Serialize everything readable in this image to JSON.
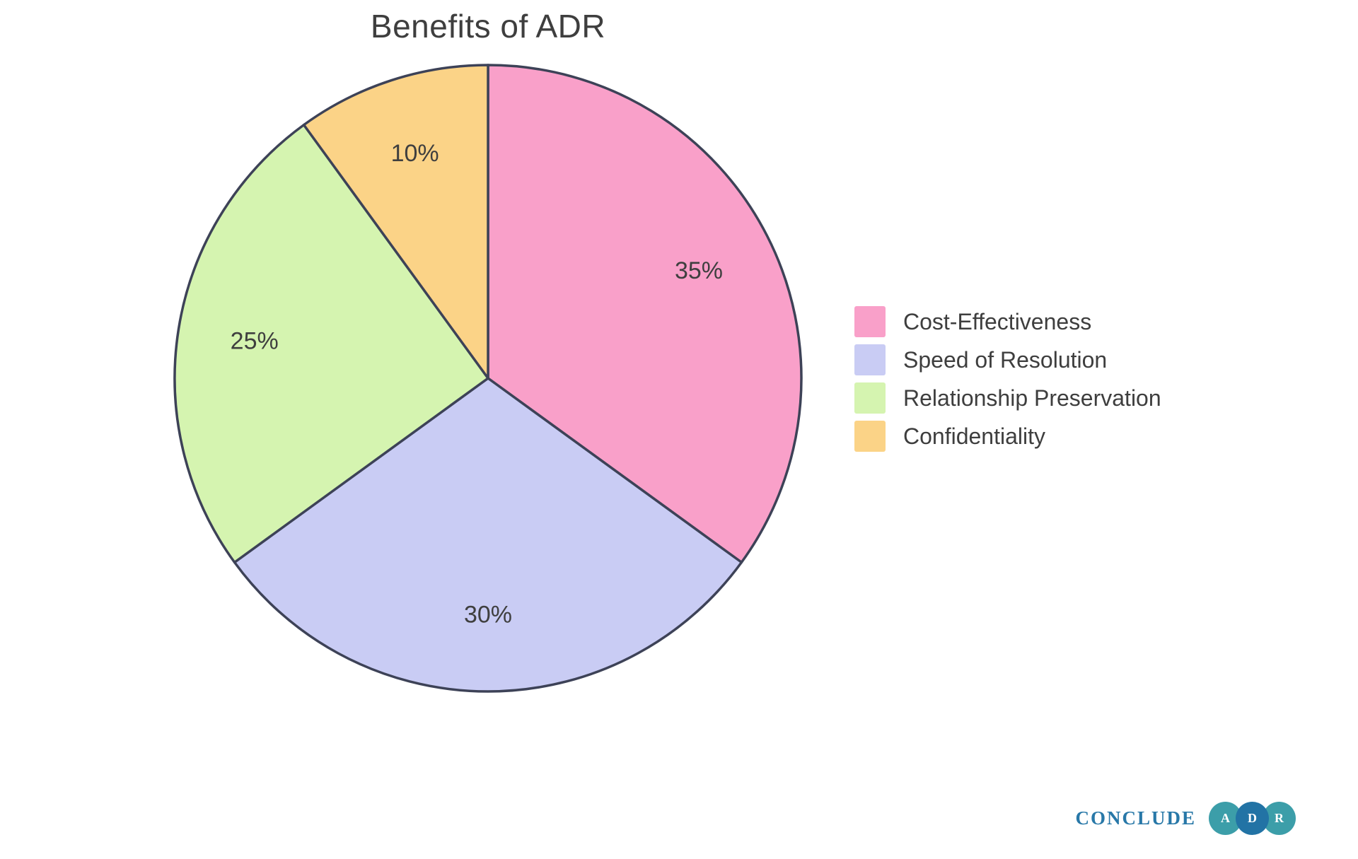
{
  "chart_data": {
    "type": "pie",
    "title": "Benefits of ADR",
    "categories": [
      "Cost-Effectiveness",
      "Speed of Resolution",
      "Relationship Preservation",
      "Confidentiality"
    ],
    "values": [
      35,
      30,
      25,
      10
    ],
    "slice_labels": [
      "35%",
      "30%",
      "25%",
      "10%"
    ],
    "colors": [
      "#F9A0C9",
      "#C9CCF4",
      "#D5F4B0",
      "#FBD387"
    ],
    "outline_color": "#3D4257",
    "label_color": "#3F3F3F",
    "start_angle": "top",
    "direction": "clockwise",
    "legend_position": "right"
  },
  "legend": {
    "items": [
      {
        "label": "Cost-Effectiveness",
        "color": "#F9A0C9"
      },
      {
        "label": "Speed of Resolution",
        "color": "#C9CCF4"
      },
      {
        "label": "Relationship Preservation",
        "color": "#D5F4B0"
      },
      {
        "label": "Confidentiality",
        "color": "#FBD387"
      }
    ]
  },
  "logo": {
    "wordmark": "CONCLUDE",
    "badge_letters": [
      "A",
      "D",
      "R"
    ],
    "wordmark_color": "#2878A8",
    "badge_colors": [
      "#3C9EA9",
      "#2273A5",
      "#3C9EA9"
    ],
    "badge_text_color": "#FFFFFF"
  }
}
